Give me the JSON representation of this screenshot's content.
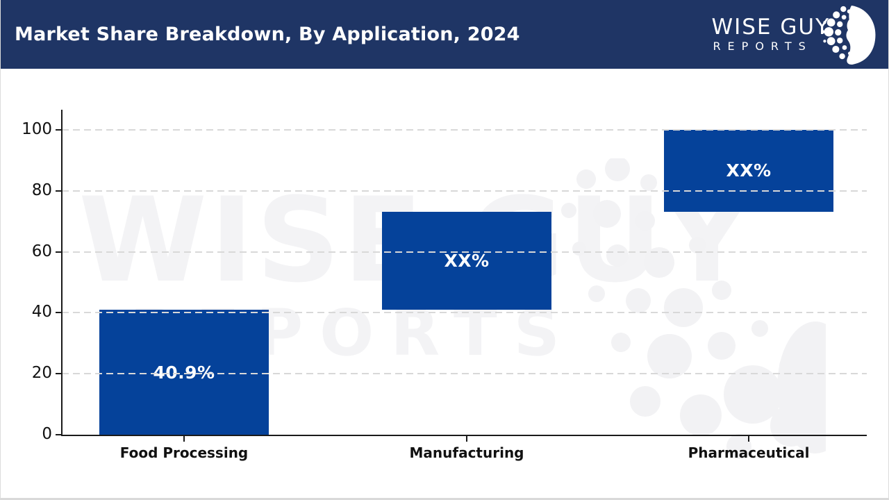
{
  "header": {
    "title": "Market Share Breakdown, By Application, 2024",
    "logo": {
      "line1": "WISE GUY",
      "line2": "REPORTS"
    }
  },
  "watermark": {
    "line1": "WISE GUY",
    "line2": "REPORTS"
  },
  "chart_data": {
    "type": "bar",
    "variant": "stacked-waterfall",
    "title": "Market Share Breakdown, By Application, 2024",
    "categories": [
      "Food Processing",
      "Manufacturing",
      "Pharmaceutical"
    ],
    "segments": [
      {
        "category": "Food Processing",
        "start": 0,
        "end": 40.9,
        "label": "40.9%"
      },
      {
        "category": "Manufacturing",
        "start": 40.9,
        "end": 73.2,
        "label": "XX%"
      },
      {
        "category": "Pharmaceutical",
        "start": 73.2,
        "end": 100,
        "label": "XX%"
      }
    ],
    "xlabel": "",
    "ylabel": "",
    "ylim": [
      0,
      100
    ],
    "yticks": [
      0,
      20,
      40,
      60,
      80,
      100
    ],
    "grid": {
      "horizontal": true,
      "style": "dashed"
    },
    "legend_position": "none",
    "colors": {
      "header_bg": "#1f3565",
      "bar": "#05429a",
      "grid": "#d8d8d8",
      "axis": "#1a1a1a",
      "bar_label": "#ffffff",
      "watermark": "#f3f3f5"
    }
  }
}
